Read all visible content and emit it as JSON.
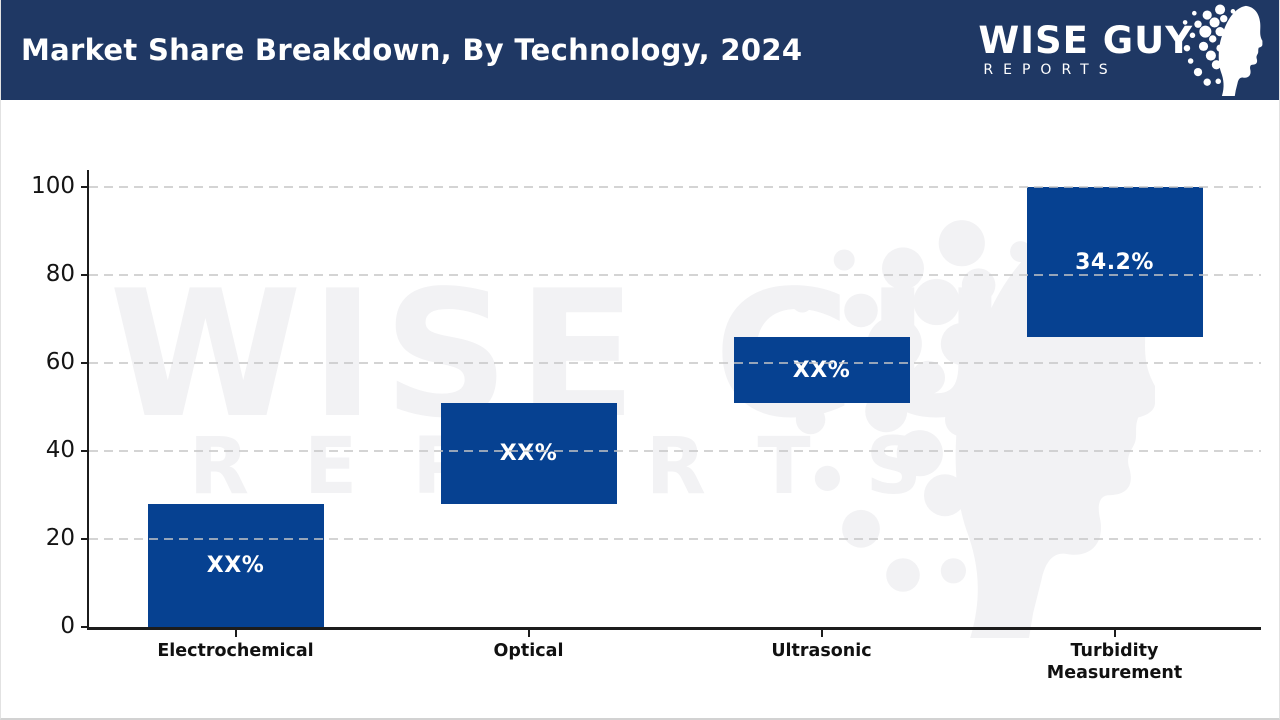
{
  "header": {
    "title": "Market Share Breakdown, By Technology, 2024",
    "logo": {
      "line1": "WISE GUY",
      "line2": "REPORTS"
    }
  },
  "watermark": {
    "line1": "WISE GUY",
    "line2": "REPORTS"
  },
  "colors": {
    "header_bg": "#1f3864",
    "bar": "#064191",
    "axis": "#1c1c1c",
    "grid": "#c6c6c6",
    "bar_label_text": "#ffffff",
    "watermark": "#f2f2f4"
  },
  "chart_data": {
    "type": "bar",
    "subtype": "waterfall-floating-bars",
    "title": "Market Share Breakdown, By Technology, 2024",
    "xlabel": "",
    "ylabel": "",
    "categories": [
      "Electrochemical",
      "Optical",
      "Ultrasonic",
      "Turbidity Measurement"
    ],
    "series": [
      {
        "name": "Market Share (%)",
        "segments": [
          {
            "category": "Electrochemical",
            "start": 0,
            "end": 28,
            "label": "XX%"
          },
          {
            "category": "Optical",
            "start": 28,
            "end": 51,
            "label": "XX%"
          },
          {
            "category": "Ultrasonic",
            "start": 51,
            "end": 65.8,
            "label": "XX%"
          },
          {
            "category": "Turbidity Measurement",
            "start": 65.8,
            "end": 100,
            "label": "34.2%"
          }
        ]
      }
    ],
    "ylim": [
      0,
      100
    ],
    "yticks": [
      0,
      20,
      40,
      60,
      80,
      100
    ],
    "grid": "horizontal-dashed",
    "legend": "none"
  }
}
